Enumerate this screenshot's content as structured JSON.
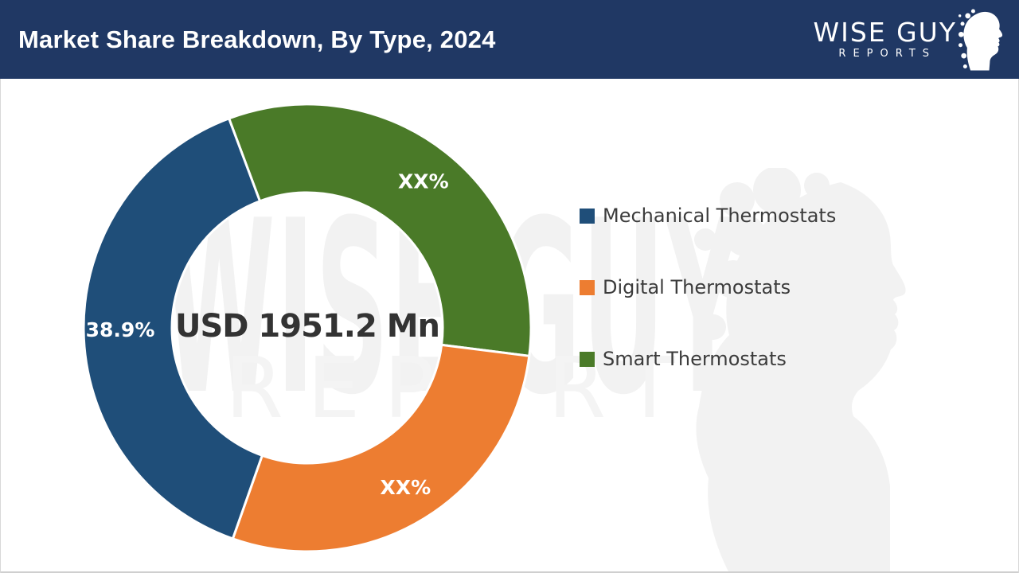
{
  "header": {
    "title": "Market Share Breakdown, By Type, 2024",
    "bg_color": "#203864",
    "logo": {
      "line1": "WISE GUY",
      "line2": "REPORTS"
    }
  },
  "watermark": {
    "line1": "WISE GUY",
    "line2": "REPORTS"
  },
  "chart_data": {
    "type": "pie",
    "subtype": "donut",
    "title": "Market Share Breakdown, By Type, 2024",
    "center_label": "USD 1951.2 Mn",
    "start_angle_deg": -20.5,
    "inner_radius_ratio": 0.605,
    "segments": [
      {
        "name": "Smart Thermostats",
        "color": "#4A7A28",
        "value": 32.7,
        "label": "XX%"
      },
      {
        "name": "Digital Thermostats",
        "color": "#ED7D31",
        "value": 28.4,
        "label": "XX%"
      },
      {
        "name": "Mechanical Thermostats",
        "color": "#1F4E79",
        "value": 38.9,
        "label": "38.9%"
      }
    ],
    "legend": [
      {
        "label": "Mechanical Thermostats",
        "color": "#1F4E79"
      },
      {
        "label": "Digital Thermostats",
        "color": "#ED7D31"
      },
      {
        "label": "Smart Thermostats",
        "color": "#4A7A28"
      }
    ],
    "legend_position": "right"
  }
}
